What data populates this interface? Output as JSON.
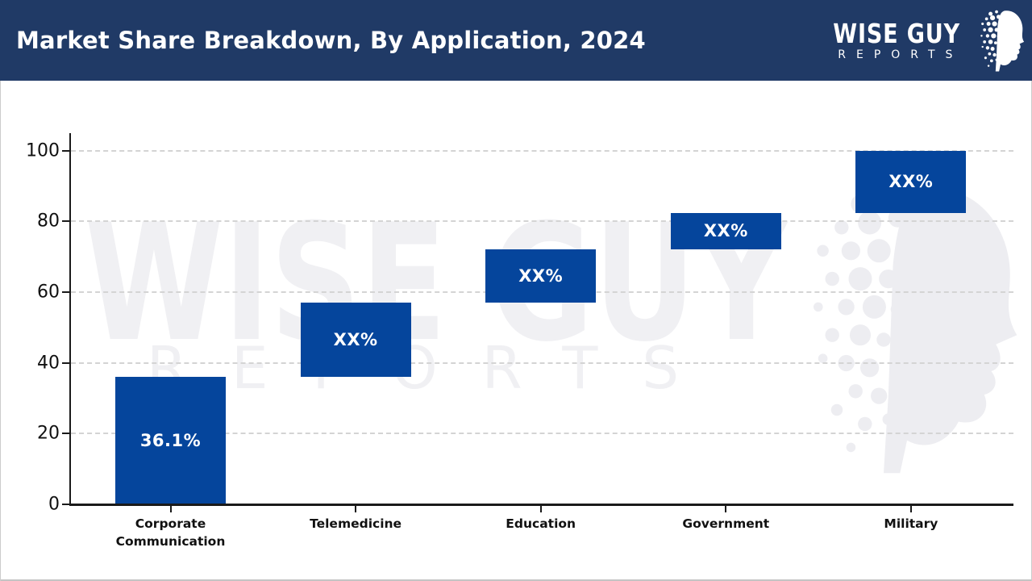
{
  "header": {
    "title": "Market Share Breakdown, By Application, 2024",
    "bg_color": "#203a66",
    "logo": {
      "line1": "WISE GUY",
      "line2": "REPORTS"
    }
  },
  "watermark": {
    "line1": "WISE GUY",
    "line2": "REPORTS"
  },
  "chart_data": {
    "type": "bar",
    "variant": "waterfall",
    "title": "Market Share Breakdown, By Application, 2024",
    "categories": [
      "Corporate Communication",
      "Telemedicine",
      "Education",
      "Government",
      "Military"
    ],
    "segments": [
      {
        "category": "Corporate Communication",
        "start": 0,
        "end": 36.1,
        "label": "36.1%"
      },
      {
        "category": "Telemedicine",
        "start": 36.1,
        "end": 57.1,
        "label": "XX%"
      },
      {
        "category": "Education",
        "start": 57.1,
        "end": 72.1,
        "label": "XX%"
      },
      {
        "category": "Government",
        "start": 72.1,
        "end": 82.3,
        "label": "XX%"
      },
      {
        "category": "Military",
        "start": 82.3,
        "end": 100,
        "label": "XX%"
      }
    ],
    "ylim": [
      0,
      100
    ],
    "yticks": [
      0,
      20,
      40,
      60,
      80,
      100
    ],
    "xlabel": "",
    "ylabel": "",
    "grid": "horizontal-dashed",
    "legend": "none",
    "bar_color": "#05459c",
    "bar_label_color": "#ffffff"
  }
}
